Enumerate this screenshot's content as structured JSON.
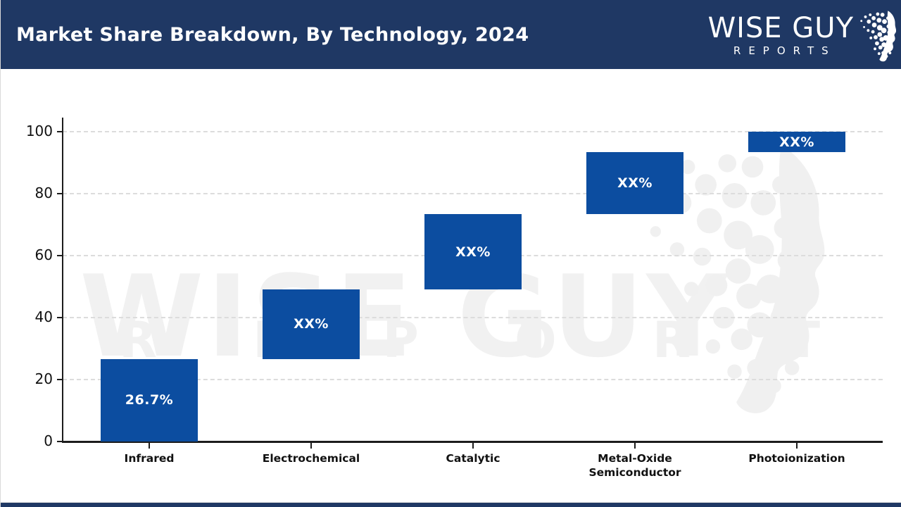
{
  "header": {
    "title": "Market Share Breakdown, By Technology, 2024"
  },
  "logo": {
    "wordmark": "WISE GUY",
    "subtext": "REPORTS",
    "icon": "dotted-head-profile-icon"
  },
  "watermark": {
    "wordmark": "WISE GUY",
    "subtext": "R E P O R T S",
    "icon": "dotted-head-profile-icon"
  },
  "chart_data": {
    "type": "bar",
    "subtype": "floating-waterfall",
    "title": "Market Share Breakdown, By Technology, 2024",
    "categories": [
      "Infrared",
      "Electrochemical",
      "Catalytic",
      "Metal-Oxide Semiconductor",
      "Photoionization"
    ],
    "segments": [
      {
        "category": "Infrared",
        "from": 0,
        "to": 26.7,
        "label": "26.7%"
      },
      {
        "category": "Electrochemical",
        "from": 26.7,
        "to": 49.0,
        "label": "XX%"
      },
      {
        "category": "Catalytic",
        "from": 49.0,
        "to": 73.3,
        "label": "XX%"
      },
      {
        "category": "Metal-Oxide Semiconductor",
        "from": 73.3,
        "to": 93.3,
        "label": "XX%"
      },
      {
        "category": "Photoionization",
        "from": 93.3,
        "to": 100,
        "label": "XX%"
      }
    ],
    "xlabel": "",
    "ylabel": "",
    "ylim": [
      0,
      100
    ],
    "yticks": [
      0,
      20,
      40,
      60,
      80,
      100
    ],
    "grid": "horizontal-dashed",
    "legend": "none",
    "bar_color": "#0c4da0",
    "bar_label_color": "#ffffff",
    "header_color": "#1f3864"
  }
}
